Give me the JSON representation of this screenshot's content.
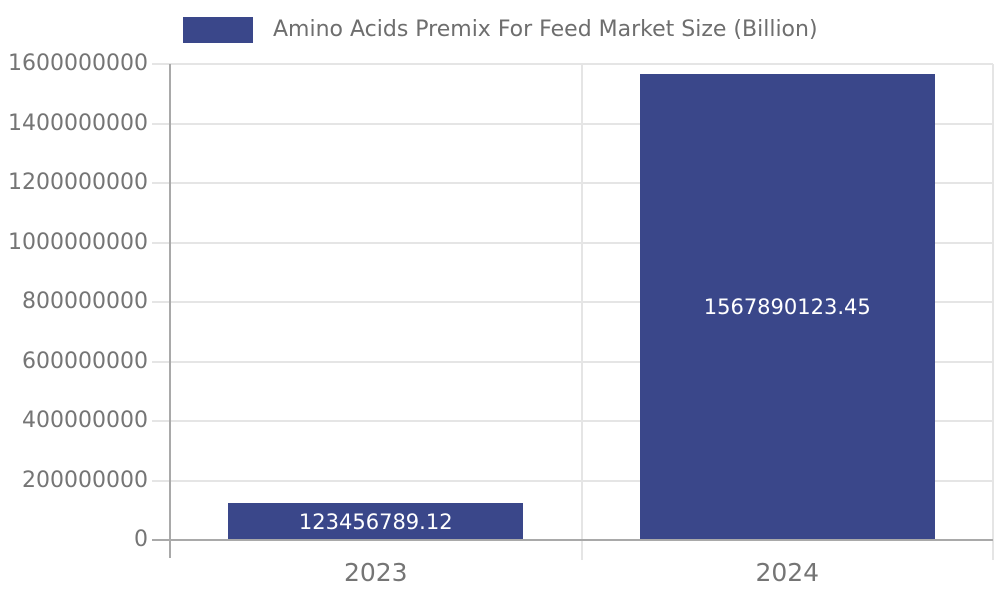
{
  "legend": {
    "label": "Amino Acids Premix For Feed Market Size (Billion)"
  },
  "chart_data": {
    "type": "bar",
    "title": "Amino Acids Premix For Feed Market Size (Billion)",
    "categories": [
      "2023",
      "2024"
    ],
    "series": [
      {
        "name": "Amino Acids Premix For Feed Market Size (Billion)",
        "values": [
          123456789.12,
          1567890123.45
        ],
        "data_labels": [
          "123456789.12",
          "1567890123.45"
        ],
        "color": "#3A478A"
      }
    ],
    "xlabel": "",
    "ylabel": "",
    "ylim": [
      0,
      1600000000
    ],
    "y_tick_interval": 200000000,
    "y_tick_labels": [
      "0",
      "200000000",
      "400000000",
      "600000000",
      "800000000",
      "1000000000",
      "1200000000",
      "1400000000",
      "1600000000"
    ],
    "grid": true,
    "legend_position": "top-left",
    "bar_label_position": "inside-center"
  },
  "colors": {
    "bar": "#3A478A",
    "grid_line": "#E5E5E5",
    "axis_line": "#A9A9A9",
    "tick_label": "#757575",
    "legend_text": "#6E6E6E",
    "bar_label": "#FFFFFF",
    "background": "#FFFFFF"
  }
}
